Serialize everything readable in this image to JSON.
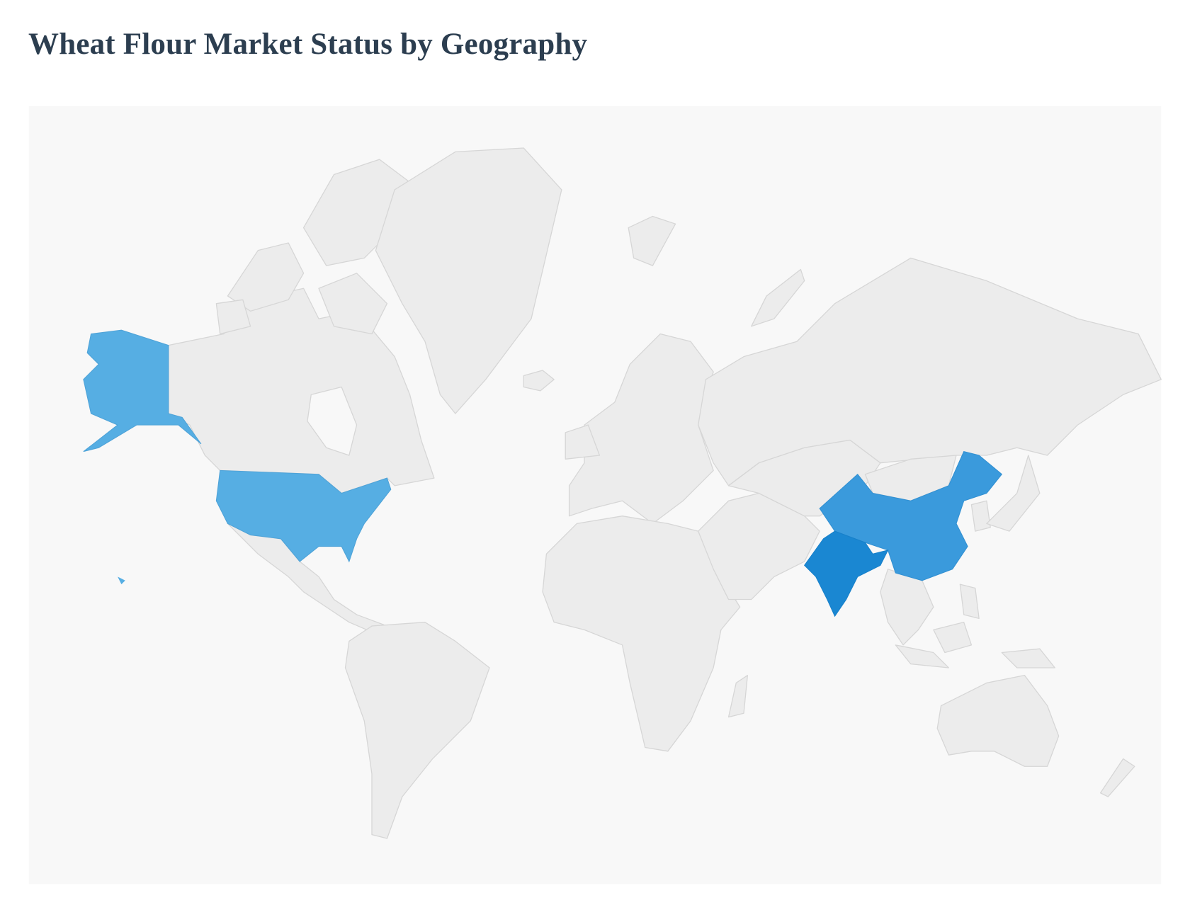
{
  "title": "Wheat Flour Market Status by Geography",
  "chart_data": {
    "type": "choropleth",
    "title": "Wheat Flour Market Status by Geography",
    "background_color": "#f8f8f8",
    "default_land_color": "#ececec",
    "border_color": "#d6d6d6",
    "legend": "none",
    "highlighted_regions": [
      {
        "name": "United States",
        "color": "#56aee3"
      },
      {
        "name": "China",
        "color": "#3a9adc"
      },
      {
        "name": "India",
        "color": "#1a87d2"
      }
    ]
  }
}
